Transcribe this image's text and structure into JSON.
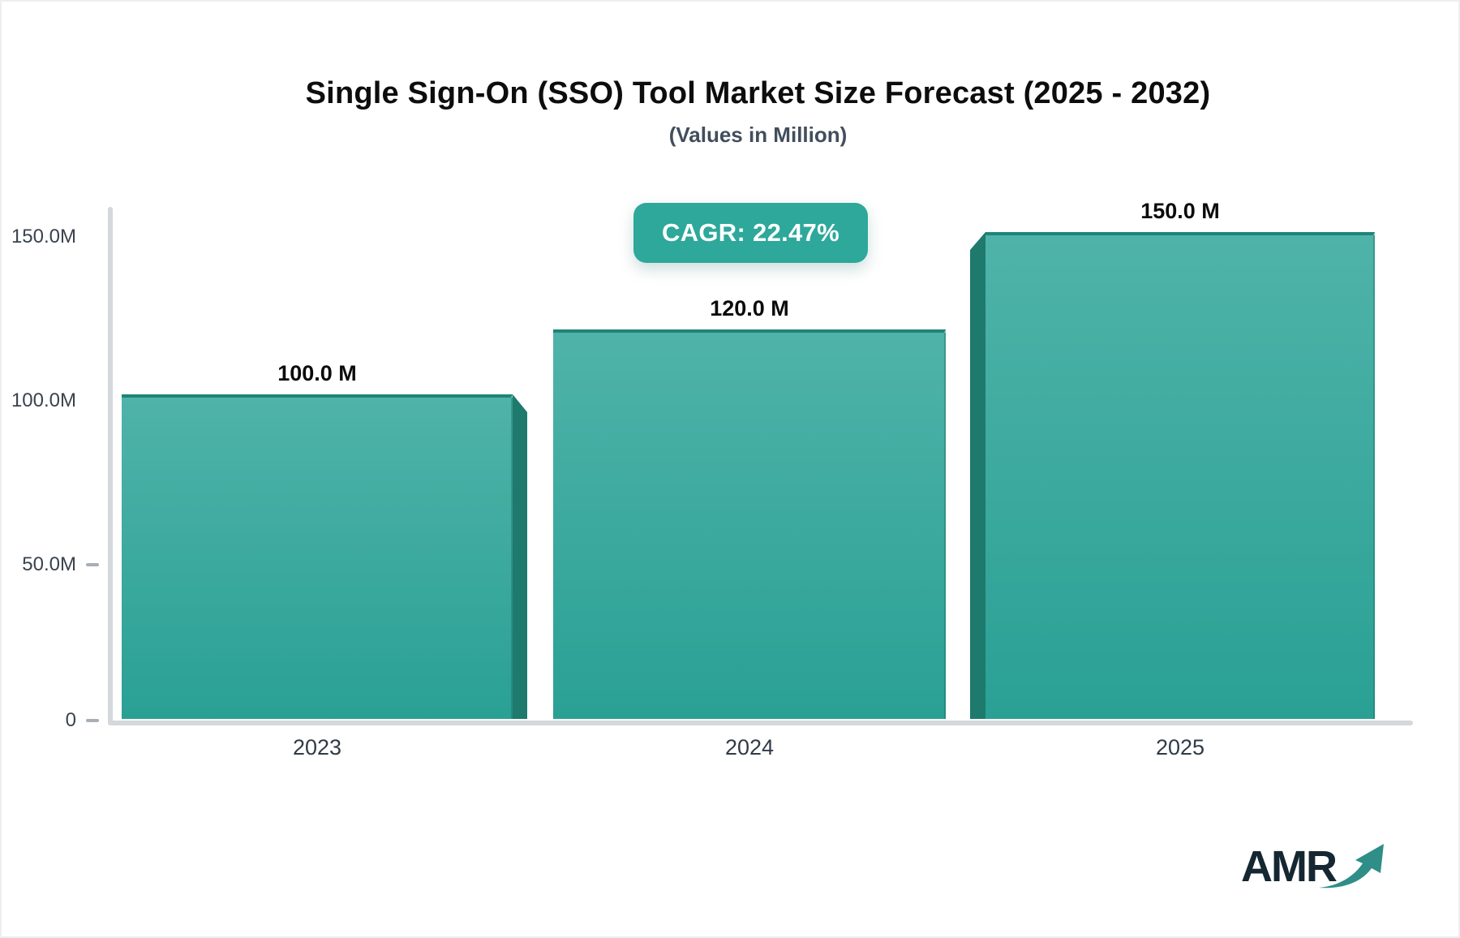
{
  "chart": {
    "title": "Single Sign-On (SSO) Tool Market Size Forecast (2025 - 2032)",
    "subtitle": "(Values in Million)",
    "cagr_label": "CAGR: 22.47%"
  },
  "chart_data": {
    "type": "bar",
    "title": "Single Sign-On (SSO) Tool Market Size Forecast (2025 - 2032)",
    "subtitle": "(Values in Million)",
    "categories": [
      "2023",
      "2024",
      "2025"
    ],
    "values": [
      100.0,
      120.0,
      150.0
    ],
    "bars": [
      {
        "category": "2023",
        "value": 100.0,
        "label": "100.0 M"
      },
      {
        "category": "2024",
        "value": 120.0,
        "label": "120.0 M"
      },
      {
        "category": "2025",
        "value": 150.0,
        "label": "150.0 M"
      }
    ],
    "y_ticks": [
      "150.0M",
      "100.0M",
      "50.0M",
      "0"
    ],
    "ylim": [
      0,
      150
    ],
    "ylabel": "",
    "xlabel": "",
    "grid": false,
    "legend": false,
    "annotation": "CAGR: 22.47%",
    "cagr_percent": 22.47,
    "colors": {
      "bar_top": "#4fb3a9",
      "bar_bottom": "#2aa094",
      "bar_side": "#1d7a6d",
      "bar_top_line": "#1e8577",
      "badge_bg": "#2da89b",
      "axis_line": "#d4d7dc",
      "logo_text": "#152731",
      "logo_arrow": "#2f8e87"
    }
  },
  "footer": {
    "logo_text": "AMR"
  }
}
